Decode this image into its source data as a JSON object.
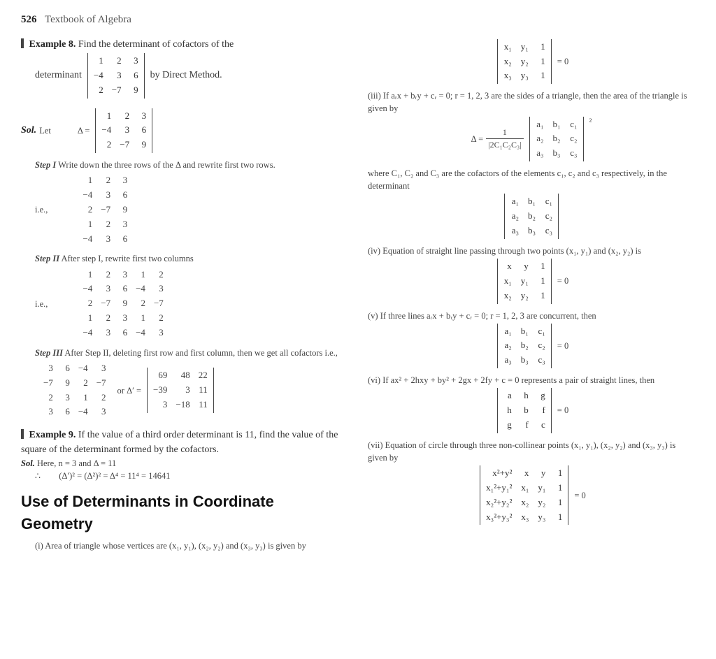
{
  "colors": {
    "text": "#333333",
    "muted": "#555555",
    "rule": "#444444",
    "heading": "#111111",
    "bg": "#ffffff"
  },
  "typography": {
    "body_family": "Georgia serif",
    "heading_family": "Arial sans-serif",
    "body_pt": 14,
    "small_pt": 12.5,
    "heading_pt": 22
  },
  "header": {
    "page_no": "526",
    "title": "Textbook of Algebra"
  },
  "left": {
    "ex8": {
      "label": "Example 8.",
      "text": "Find the determinant of cofactors of the",
      "det_label": "determinant",
      "by": "by Direct Method.",
      "matrix": [
        [
          "1",
          "2",
          "3"
        ],
        [
          "−4",
          "3",
          "6"
        ],
        [
          "2",
          "−7",
          "9"
        ]
      ]
    },
    "sol_label": "Sol.",
    "let": "Let",
    "delta_eq": "Δ =",
    "delta_matrix": [
      [
        "1",
        "2",
        "3"
      ],
      [
        "−4",
        "3",
        "6"
      ],
      [
        "2",
        "−7",
        "9"
      ]
    ],
    "step1": {
      "label": "Step I",
      "text": "Write down the three rows of the Δ and rewrite first two rows."
    },
    "ie": "i.e.,",
    "step1_matrix": [
      [
        "1",
        "2",
        "3"
      ],
      [
        "−4",
        "3",
        "6"
      ],
      [
        "2",
        "−7",
        "9"
      ],
      [
        "1",
        "2",
        "3"
      ],
      [
        "−4",
        "3",
        "6"
      ]
    ],
    "step2": {
      "label": "Step II",
      "text": "After step I, rewrite first two columns"
    },
    "step2_matrix": [
      [
        "1",
        "2",
        "3",
        "1",
        "2"
      ],
      [
        "−4",
        "3",
        "6",
        "−4",
        "3"
      ],
      [
        "2",
        "−7",
        "9",
        "2",
        "−7"
      ],
      [
        "1",
        "2",
        "3",
        "1",
        "2"
      ],
      [
        "−4",
        "3",
        "6",
        "−4",
        "3"
      ]
    ],
    "step3": {
      "label": "Step III",
      "text": "After Step II, deleting first row and first column, then we get all cofactors i.e.,"
    },
    "step3_left": [
      [
        "3",
        "6",
        "−4",
        "3"
      ],
      [
        "−7",
        "9",
        "2",
        "−7"
      ],
      [
        "2",
        "3",
        "1",
        "2"
      ],
      [
        "3",
        "6",
        "−4",
        "3"
      ]
    ],
    "step3_or": "or  Δ′ =",
    "step3_result": [
      [
        "69",
        "48",
        "22"
      ],
      [
        "−39",
        "3",
        "11"
      ],
      [
        "3",
        "−18",
        "11"
      ]
    ],
    "ex9": {
      "label": "Example 9.",
      "text": "If the value of a third order determinant is 11, find the value of the square of the determinant formed by the cofactors."
    },
    "ex9_sol": "Sol.",
    "ex9_here": "Here, n = 3 and Δ = 11",
    "ex9_therefore": "∴",
    "ex9_calc": "(Δ′)² = (Δ²)² = Δ⁴ = 11⁴ = 14641",
    "use_hdr": "Use of Determinants in Coordinate Geometry",
    "use_i": "(i) Area of triangle whose vertices are (x₁, y₁), (x₂, y₂) and (x₃, y₃) is given by"
  },
  "right": {
    "collinear_matrix": [
      [
        "x₁",
        "y₁",
        "1"
      ],
      [
        "x₂",
        "y₂",
        "1"
      ],
      [
        "x₃",
        "y₃",
        "1"
      ]
    ],
    "eq0": "= 0",
    "iii": {
      "num": "(iii)",
      "text": "If aᵣx + bᵣy + cᵣ = 0; r = 1, 2, 3 are the sides of a triangle, then the area of the triangle is given by"
    },
    "iii_delta": "Δ =",
    "iii_frac_num": "1",
    "iii_frac_den": "|2C₁C₂C₃|",
    "iii_matrix": [
      [
        "a₁",
        "b₁",
        "c₁"
      ],
      [
        "a₂",
        "b₂",
        "c₂"
      ],
      [
        "a₃",
        "b₃",
        "c₃"
      ]
    ],
    "iii_sq": "²",
    "iii_where": "where C₁, C₂ and C₃ are the cofactors of the elements c₁, c₂ and c₃ respectively, in the determinant",
    "iii_matrix2": [
      [
        "a₁",
        "b₁",
        "c₁"
      ],
      [
        "a₂",
        "b₂",
        "c₂"
      ],
      [
        "a₃",
        "b₃",
        "c₃"
      ]
    ],
    "iv": {
      "num": "(iv)",
      "text": "Equation of straight line passing through two points (x₁, y₁) and (x₂, y₂) is"
    },
    "iv_matrix": [
      [
        "x",
        "y",
        "1"
      ],
      [
        "x₁",
        "y₁",
        "1"
      ],
      [
        "x₂",
        "y₂",
        "1"
      ]
    ],
    "v": {
      "num": "(v)",
      "text": "If three lines aᵣx + bᵣy + cᵣ = 0; r = 1, 2, 3 are concurrent, then"
    },
    "v_matrix": [
      [
        "a₁",
        "b₁",
        "c₁"
      ],
      [
        "a₂",
        "b₂",
        "c₂"
      ],
      [
        "a₃",
        "b₃",
        "c₃"
      ]
    ],
    "vi": {
      "num": "(vi)",
      "text": "If ax² + 2hxy + by² + 2gx + 2fy + c = 0 represents a pair of straight lines, then"
    },
    "vi_matrix": [
      [
        "a",
        "h",
        "g"
      ],
      [
        "h",
        "b",
        "f"
      ],
      [
        "g",
        "f",
        "c"
      ]
    ],
    "vii": {
      "num": "(vii)",
      "text": "Equation of circle through three non-collinear points (x₁, y₁), (x₂, y₂) and (x₃, y₃) is given by"
    },
    "vii_matrix": [
      [
        "x²+y²",
        "x",
        "y",
        "1"
      ],
      [
        "x₁²+y₁²",
        "x₁",
        "y₁",
        "1"
      ],
      [
        "x₂²+y₂²",
        "x₂",
        "y₂",
        "1"
      ],
      [
        "x₃²+y₃²",
        "x₃",
        "y₃",
        "1"
      ]
    ]
  }
}
